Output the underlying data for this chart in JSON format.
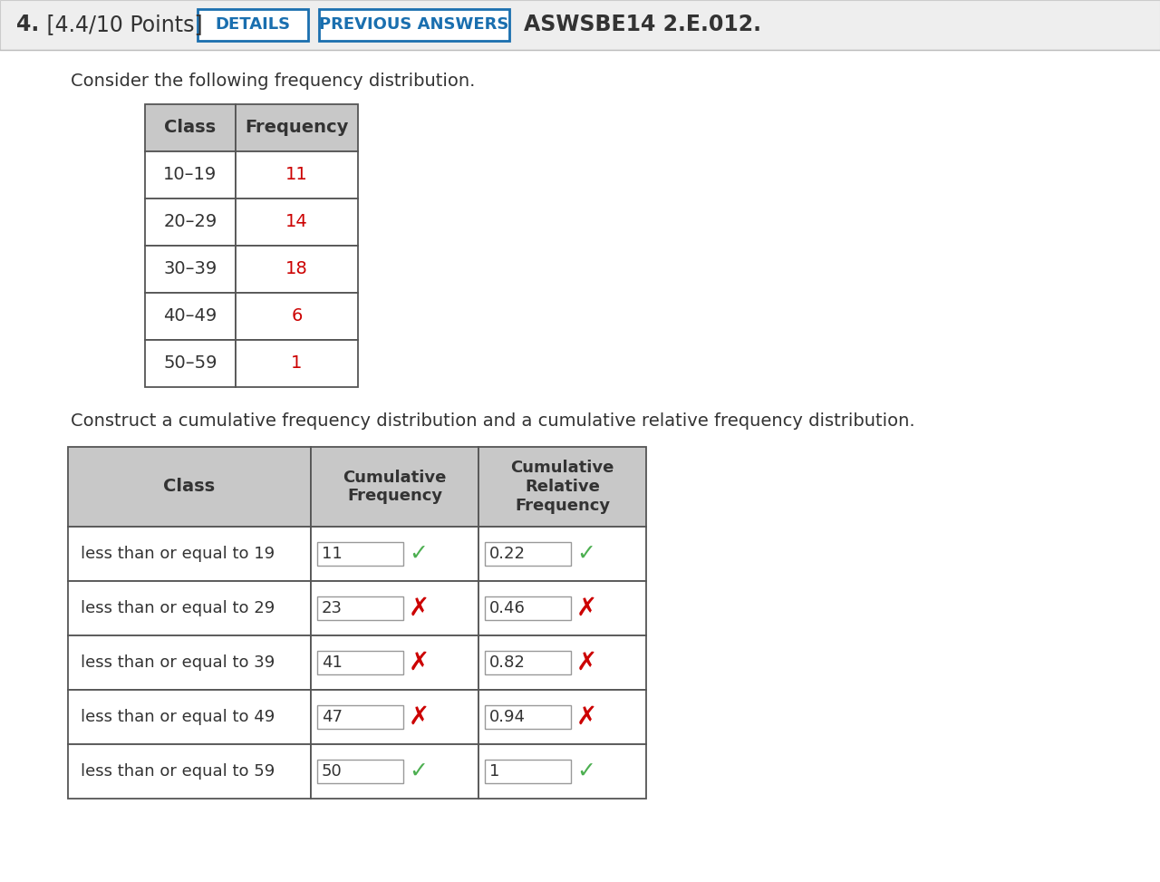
{
  "white": "#ffffff",
  "light_gray_bg": "#f0f0f0",
  "header_bg": "#c8c8c8",
  "border_color": "#555555",
  "text_color": "#333333",
  "red_color": "#cc0000",
  "green_color": "#4caf50",
  "blue_border": "#1a6faf",
  "details_btn": "DETAILS",
  "prev_btn": "PREVIOUS ANSWERS",
  "code_label": "ASWSBE14 2.E.012.",
  "intro_text": "Consider the following frequency distribution.",
  "table1_classes": [
    "10–19",
    "20–29",
    "30–39",
    "40–49",
    "50–59"
  ],
  "table1_freqs": [
    "11",
    "14",
    "18",
    "6",
    "1"
  ],
  "construct_text": "Construct a cumulative frequency distribution and a cumulative relative frequency distribution.",
  "table2_classes": [
    "less than or equal to 19",
    "less than or equal to 29",
    "less than or equal to 39",
    "less than or equal to 49",
    "less than or equal to 59"
  ],
  "table2_cum_freq": [
    "11",
    "23",
    "41",
    "47",
    "50"
  ],
  "table2_cum_rel_freq": [
    "0.22",
    "0.46",
    "0.82",
    "0.94",
    "1"
  ],
  "table2_cum_freq_correct": [
    true,
    false,
    false,
    false,
    true
  ],
  "table2_cum_rel_correct": [
    true,
    false,
    false,
    false,
    true
  ],
  "fig_w": 12.8,
  "fig_h": 9.73,
  "dpi": 100
}
